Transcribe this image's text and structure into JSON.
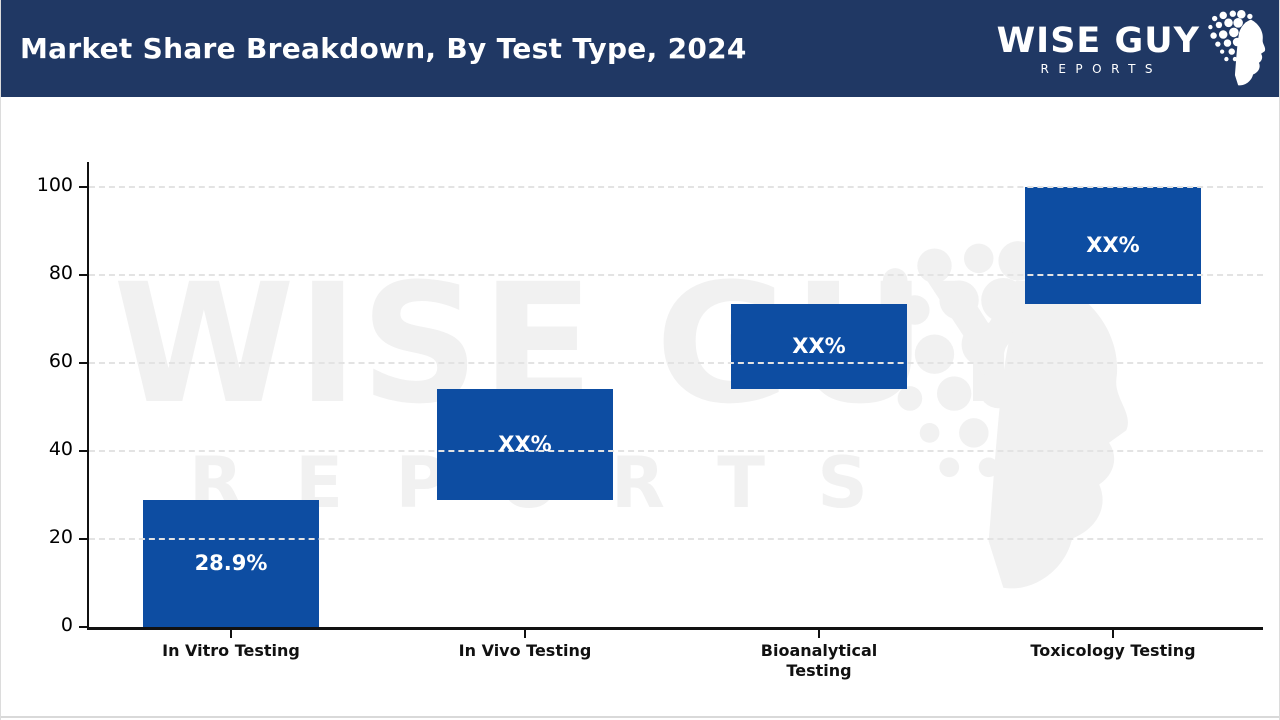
{
  "header": {
    "title": "Market Share Breakdown, By Test Type, 2024",
    "logo": {
      "line1": "WISE GUY",
      "line2": "REPORTS"
    }
  },
  "watermark": {
    "line1": "WISE GUY",
    "line2": "R E P O R T S"
  },
  "colors": {
    "header_bg": "#203864",
    "bar": "#0d4da2",
    "grid": "#e3e3e3",
    "axis": "#111111",
    "watermark": "#f1f1f1",
    "bar_label": "#ffffff"
  },
  "chart_data": {
    "type": "bar",
    "subtype": "waterfall",
    "title": "Market Share Breakdown, By Test Type, 2024",
    "categories": [
      "In Vitro Testing",
      "In Vivo Testing",
      "Bioanalytical Testing",
      "Toxicology Testing"
    ],
    "segments": [
      {
        "category": "In Vitro Testing",
        "start": 0,
        "end": 28.9,
        "label": "28.9%"
      },
      {
        "category": "In Vivo Testing",
        "start": 28.9,
        "end": 54.1,
        "label": "XX%"
      },
      {
        "category": "Bioanalytical Testing",
        "start": 54.1,
        "end": 73.5,
        "label": "XX%"
      },
      {
        "category": "Toxicology Testing",
        "start": 73.5,
        "end": 100,
        "label": "XX%"
      }
    ],
    "xlabel": "",
    "ylabel": "",
    "ylim": [
      0,
      105
    ],
    "yticks": [
      0,
      20,
      40,
      60,
      80,
      100
    ],
    "grid": "horizontal dashed, drawn above bars",
    "legend": "none"
  }
}
